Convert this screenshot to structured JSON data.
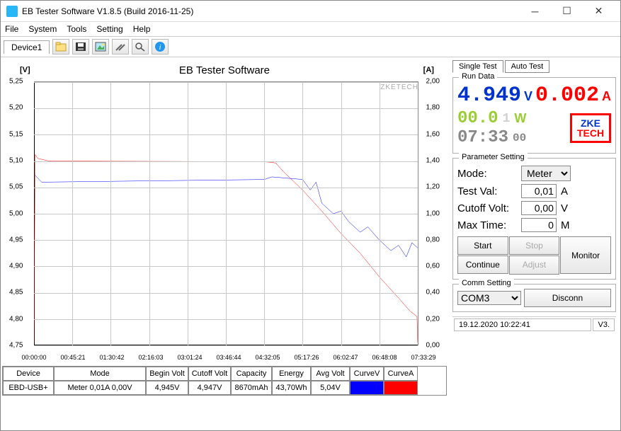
{
  "window": {
    "title": "EB Tester Software V1.8.5 (Build 2016-11-25)"
  },
  "menu": [
    "File",
    "System",
    "Tools",
    "Setting",
    "Help"
  ],
  "device_tab": "Device1",
  "chart": {
    "title": "EB Tester Software",
    "watermark": "ZKETECH",
    "yl_label": "[V]",
    "yr_label": "[A]",
    "yl_ticks": [
      "5,25",
      "5,20",
      "5,15",
      "5,10",
      "5,05",
      "5,00",
      "4,95",
      "4,90",
      "4,85",
      "4,80",
      "4,75"
    ],
    "yr_ticks": [
      "2,00",
      "1,80",
      "1,60",
      "1,40",
      "1,20",
      "1,00",
      "0,80",
      "0,60",
      "0,40",
      "0,20",
      "0,00"
    ],
    "x_ticks": [
      "00:00:00",
      "00:45:21",
      "01:30:42",
      "02:16:03",
      "03:01:24",
      "03:46:44",
      "04:32:05",
      "05:17:26",
      "06:02:47",
      "06:48:08",
      "07:33:29"
    ],
    "series": {
      "voltage_color": "#0000ff",
      "current_color": "#ff0000",
      "voltage_points": [
        [
          0,
          5.075
        ],
        [
          0.02,
          5.06
        ],
        [
          0.6,
          5.065
        ],
        [
          0.62,
          5.07
        ],
        [
          0.7,
          5.065
        ],
        [
          0.72,
          5.045
        ],
        [
          0.735,
          5.06
        ],
        [
          0.75,
          5.02
        ],
        [
          0.78,
          5.0
        ],
        [
          0.8,
          5.005
        ],
        [
          0.82,
          4.985
        ],
        [
          0.85,
          4.965
        ],
        [
          0.87,
          4.975
        ],
        [
          0.9,
          4.95
        ],
        [
          0.93,
          4.93
        ],
        [
          0.95,
          4.94
        ],
        [
          0.97,
          4.918
        ],
        [
          0.985,
          4.945
        ],
        [
          1.0,
          4.935
        ]
      ],
      "current_points": [
        [
          0,
          0.02
        ],
        [
          0.003,
          1.45
        ],
        [
          0.01,
          1.42
        ],
        [
          0.04,
          1.4
        ],
        [
          0.6,
          1.395
        ],
        [
          0.62,
          1.39
        ],
        [
          0.63,
          1.385
        ],
        [
          0.65,
          1.32
        ],
        [
          0.7,
          1.18
        ],
        [
          0.75,
          1.02
        ],
        [
          0.8,
          0.85
        ],
        [
          0.85,
          0.7
        ],
        [
          0.9,
          0.52
        ],
        [
          0.95,
          0.36
        ],
        [
          0.98,
          0.26
        ],
        [
          0.998,
          0.22
        ],
        [
          1.0,
          0.02
        ]
      ]
    },
    "yl_min": 4.75,
    "yl_max": 5.25,
    "yr_min": 0.0,
    "yr_max": 2.0
  },
  "table": {
    "headers": [
      "Device",
      "Mode",
      "Begin Volt",
      "Cutoff Volt",
      "Capacity",
      "Energy",
      "Avg Volt",
      "CurveV",
      "CurveA"
    ],
    "row": [
      "EBD-USB+",
      "Meter  0,01A  0,00V",
      "4,945V",
      "4,947V",
      "8670mAh",
      "43,70Wh",
      "5,04V"
    ],
    "curveV_color": "#0000ff",
    "curveA_color": "#ff0000",
    "widths": [
      72,
      130,
      60,
      60,
      58,
      55,
      55,
      48,
      48
    ]
  },
  "right": {
    "tabs": [
      "Single Test",
      "Auto Test"
    ],
    "run_data_label": "Run Data",
    "voltage": "4.949",
    "voltage_unit": "V",
    "current": "0.002",
    "current_unit": "A",
    "power": "00.0",
    "power_frac": "1",
    "power_unit": "W",
    "timer": "07:33",
    "timer_sec": "00",
    "param_label": "Parameter Setting",
    "mode_label": "Mode:",
    "mode_value": "Meter",
    "testval_label": "Test Val:",
    "testval_value": "0,01",
    "testval_unit": "A",
    "cutoff_label": "Cutoff Volt:",
    "cutoff_value": "0,00",
    "cutoff_unit": "V",
    "maxtime_label": "Max Time:",
    "maxtime_value": "0",
    "maxtime_unit": "M",
    "btn_start": "Start",
    "btn_stop": "Stop",
    "btn_monitor": "Monitor",
    "btn_continue": "Continue",
    "btn_adjust": "Adjust",
    "comm_label": "Comm Setting",
    "comm_port": "COM3",
    "comm_btn": "Disconn"
  },
  "statusbar": {
    "date": "19.12.2020 10:22:41",
    "ver": "V3."
  }
}
